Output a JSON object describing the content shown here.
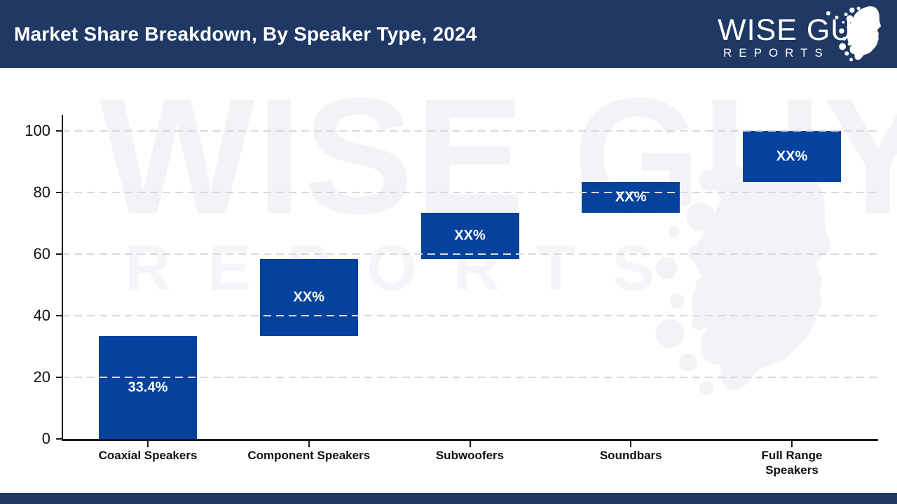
{
  "header": {
    "title": "Market Share Breakdown, By Speaker Type, 2024",
    "logo": {
      "primary": "WISE GUY",
      "secondary": "REPORTS"
    }
  },
  "watermark": {
    "primary": "WISE GUY",
    "secondary": "REPORTS"
  },
  "colors": {
    "navy": "#1F3864",
    "bar_blue": "#05429E",
    "gridline": "#D9D9D9",
    "axis": "#1A1A1A",
    "watermark_gray": "#F2F3F6"
  },
  "chart_data": {
    "type": "bar",
    "variant": "waterfall",
    "title": "Market Share Breakdown, By Speaker Type, 2024",
    "categories": [
      "Coaxial Speakers",
      "Component Speakers",
      "Subwoofers",
      "Soundbars",
      "Full Range Speakers"
    ],
    "segments": [
      {
        "start": 0,
        "end": 33.4
      },
      {
        "start": 33.4,
        "end": 58.4
      },
      {
        "start": 58.4,
        "end": 73.4
      },
      {
        "start": 73.4,
        "end": 83.4
      },
      {
        "start": 83.4,
        "end": 100
      }
    ],
    "bar_labels": [
      "33.4%",
      "XX%",
      "XX%",
      "XX%",
      "XX%"
    ],
    "yticks": [
      0,
      20,
      40,
      60,
      80,
      100
    ],
    "ylim": [
      0,
      105
    ],
    "xlabel": "",
    "ylabel": "",
    "grid": "horizontal-dashed",
    "legend": "none",
    "bar_color": "#05429E"
  }
}
